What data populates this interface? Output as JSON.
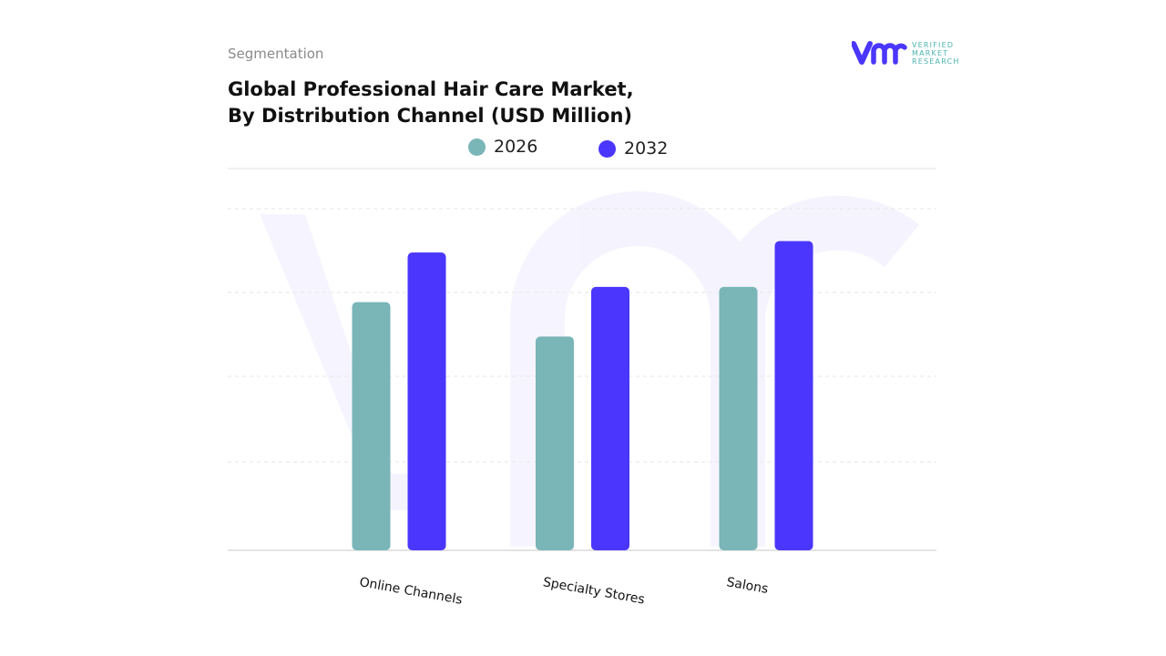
{
  "header": {
    "segment_label": "Segmentation",
    "title_line1": "Global Professional Hair Care Market,",
    "title_line2": "By Distribution Channel (USD Million)"
  },
  "logo": {
    "mark": "vmr",
    "line1": "VERIFIED",
    "line2": "MARKET",
    "line3": "RESEARCH"
  },
  "chart_data": {
    "type": "bar",
    "title": "Global Professional Hair Care Market, By Distribution Channel (USD Million)",
    "categories": [
      "Online Channels",
      "Specialty Stores",
      "Salons"
    ],
    "series": [
      {
        "name": "2026",
        "color": "#7ab5b8",
        "values": [
          65,
          56,
          69
        ]
      },
      {
        "name": "2032",
        "color": "#4a36fc",
        "values": [
          78,
          69,
          81
        ]
      }
    ],
    "ylim": [
      0,
      100
    ],
    "y_tick_labels_shown": false,
    "grid": true,
    "legend": "top-center",
    "xlabel": "",
    "ylabel": ""
  }
}
